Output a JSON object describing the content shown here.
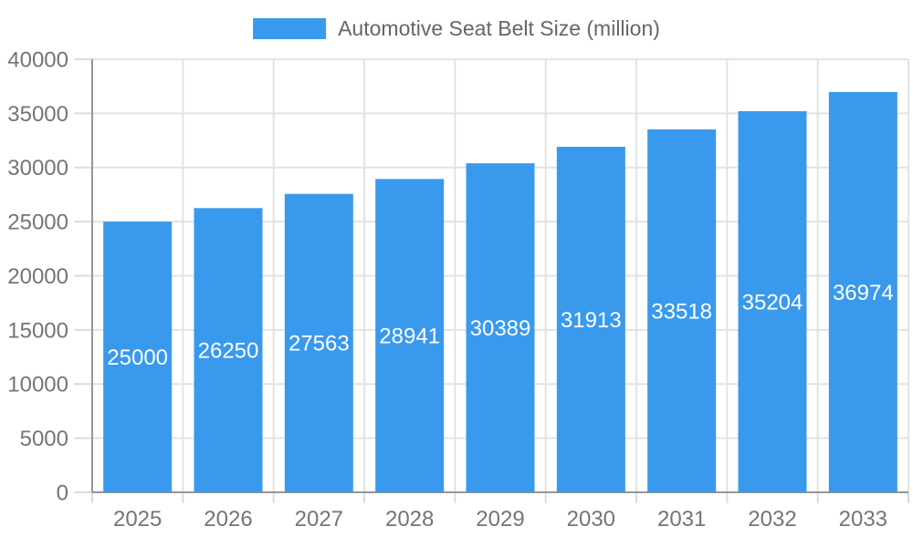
{
  "chart_data": {
    "type": "bar",
    "title": "Automotive Seat Belt Size (million)",
    "categories": [
      "2025",
      "2026",
      "2027",
      "2028",
      "2029",
      "2030",
      "2031",
      "2032",
      "2033"
    ],
    "values": [
      25000,
      26250,
      27563,
      28941,
      30389,
      31913,
      33518,
      35204,
      36974
    ],
    "xlabel": "",
    "ylabel": "",
    "ylim": [
      0,
      40000
    ],
    "ytick_step": 5000,
    "ytick_labels": [
      "0",
      "5000",
      "10000",
      "15000",
      "20000",
      "25000",
      "30000",
      "35000",
      "40000"
    ],
    "grid": true,
    "legend_position": "top",
    "value_label_position": "inside-center",
    "colors": {
      "bar": "#3999ED",
      "grid": "#E3E3E3",
      "tick": "#DCDCDC",
      "axis": "#969696",
      "axis_label": "#757575",
      "value_label": "#FFFFFF",
      "legend_text": "#666666"
    }
  }
}
